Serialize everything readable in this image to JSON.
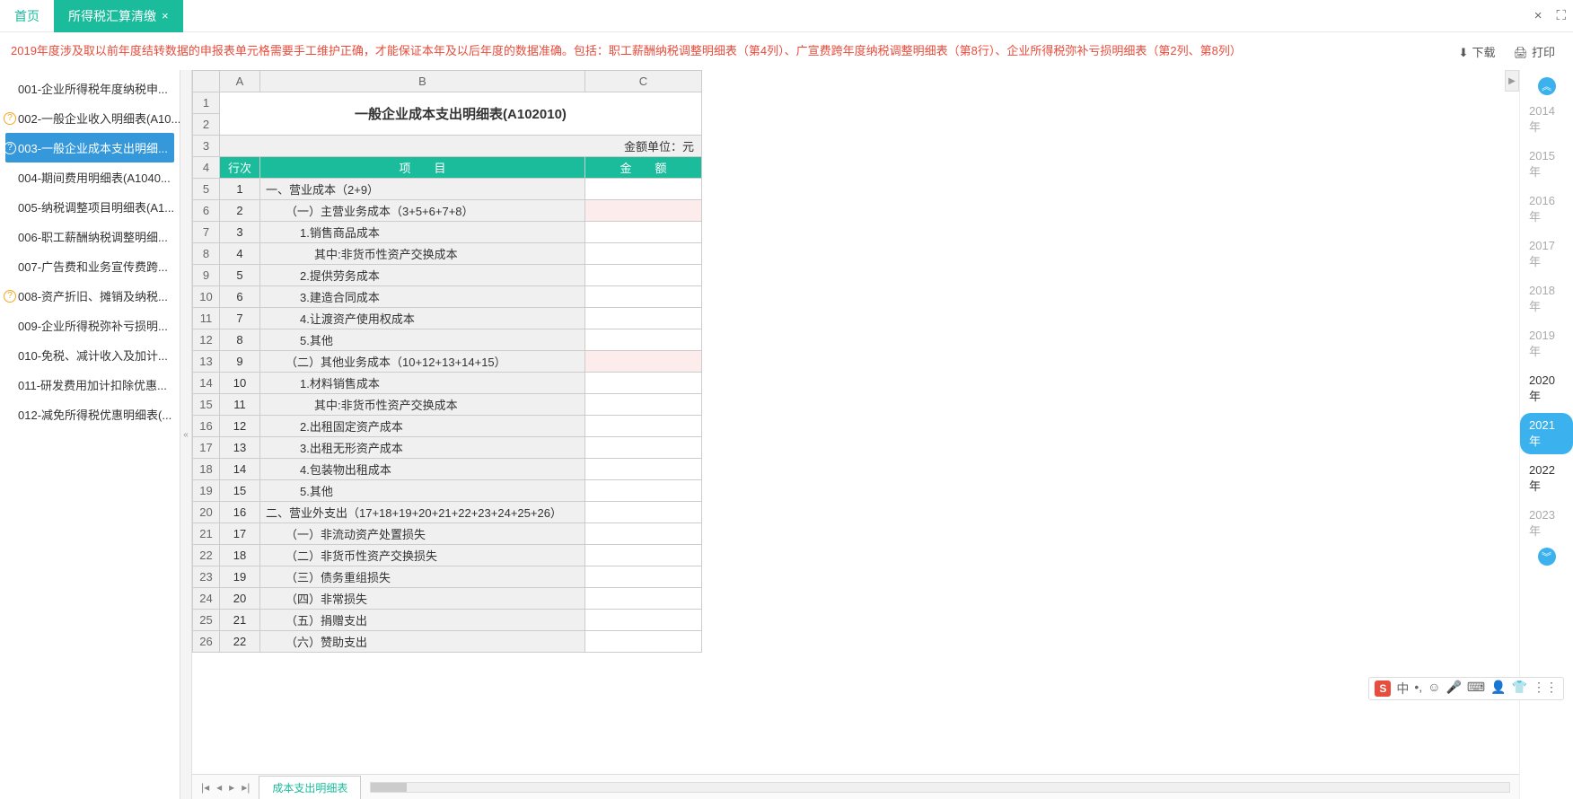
{
  "tabs": {
    "home": "首页",
    "active": "所得税汇算清缴",
    "close_glyph": "×",
    "fullscreen_glyph": "⛶"
  },
  "warning": "2019年度涉及取以前年度结转数据的申报表单元格需要手工维护正确，才能保证本年及以后年度的数据准确。包括：职工薪酬纳税调整明细表（第4列）、广宣费跨年度纳税调整明细表（第8行）、企业所得税弥补亏损明细表（第2列、第8列）",
  "actions": {
    "download": "下载",
    "download_icon": "⬇",
    "print": "打印",
    "print_icon": "🖨"
  },
  "sidebar": {
    "items": [
      {
        "label": "001-企业所得税年度纳税申...",
        "q": false
      },
      {
        "label": "002-一般企业收入明细表(A10...",
        "q": true
      },
      {
        "label": "003-一般企业成本支出明细...",
        "q": true,
        "active": true
      },
      {
        "label": "004-期间费用明细表(A1040...",
        "q": false
      },
      {
        "label": "005-纳税调整项目明细表(A1...",
        "q": false
      },
      {
        "label": "006-职工薪酬纳税调整明细...",
        "q": false
      },
      {
        "label": "007-广告费和业务宣传费跨...",
        "q": false
      },
      {
        "label": "008-资产折旧、摊销及纳税...",
        "q": true
      },
      {
        "label": "009-企业所得税弥补亏损明...",
        "q": false
      },
      {
        "label": "010-免税、减计收入及加计...",
        "q": false
      },
      {
        "label": "011-研发费用加计扣除优惠...",
        "q": false
      },
      {
        "label": "012-减免所得税优惠明细表(...",
        "q": false
      }
    ]
  },
  "collapse_glyph": "«",
  "sheet": {
    "columns": [
      "A",
      "B",
      "C"
    ],
    "title": "一般企业成本支出明细表(A102010)",
    "unit": "金额单位：元",
    "headers": {
      "A": "行次",
      "B": "项　　目",
      "C": "金　　额"
    },
    "rows": [
      {
        "n": 4,
        "A": "1",
        "B": "一、营业成本（2+9）",
        "indent": 0,
        "pink": false
      },
      {
        "n": 5,
        "A": "2",
        "B": "（一）主营业务成本（3+5+6+7+8）",
        "indent": 1,
        "pink": true
      },
      {
        "n": 6,
        "A": "3",
        "B": "1.销售商品成本",
        "indent": 2,
        "pink": false
      },
      {
        "n": 7,
        "A": "4",
        "B": "其中:非货币性资产交换成本",
        "indent": 3,
        "pink": false
      },
      {
        "n": 8,
        "A": "5",
        "B": "2.提供劳务成本",
        "indent": 2,
        "pink": false
      },
      {
        "n": 9,
        "A": "6",
        "B": "3.建造合同成本",
        "indent": 2,
        "pink": false
      },
      {
        "n": 10,
        "A": "7",
        "B": "4.让渡资产使用权成本",
        "indent": 2,
        "pink": false
      },
      {
        "n": 11,
        "A": "8",
        "B": "5.其他",
        "indent": 2,
        "pink": false
      },
      {
        "n": 12,
        "A": "9",
        "B": "（二）其他业务成本（10+12+13+14+15）",
        "indent": 1,
        "pink": true
      },
      {
        "n": 13,
        "A": "10",
        "B": "1.材料销售成本",
        "indent": 2,
        "pink": false
      },
      {
        "n": 14,
        "A": "11",
        "B": "其中:非货币性资产交换成本",
        "indent": 3,
        "pink": false
      },
      {
        "n": 15,
        "A": "12",
        "B": "2.出租固定资产成本",
        "indent": 2,
        "pink": false
      },
      {
        "n": 16,
        "A": "13",
        "B": "3.出租无形资产成本",
        "indent": 2,
        "pink": false
      },
      {
        "n": 17,
        "A": "14",
        "B": "4.包装物出租成本",
        "indent": 2,
        "pink": false
      },
      {
        "n": 18,
        "A": "15",
        "B": "5.其他",
        "indent": 2,
        "pink": false
      },
      {
        "n": 19,
        "A": "16",
        "B": "二、营业外支出（17+18+19+20+21+22+23+24+25+26）",
        "indent": 0,
        "pink": false
      },
      {
        "n": 20,
        "A": "17",
        "B": "（一）非流动资产处置损失",
        "indent": 1,
        "pink": false
      },
      {
        "n": 21,
        "A": "18",
        "B": "（二）非货币性资产交换损失",
        "indent": 1,
        "pink": false
      },
      {
        "n": 22,
        "A": "19",
        "B": "（三）债务重组损失",
        "indent": 1,
        "pink": false
      },
      {
        "n": 23,
        "A": "20",
        "B": "（四）非常损失",
        "indent": 1,
        "pink": false
      },
      {
        "n": 24,
        "A": "21",
        "B": "（五）捐赠支出",
        "indent": 1,
        "pink": false
      },
      {
        "n": 25,
        "A": "22",
        "B": "（六）赞助支出",
        "indent": 1,
        "pink": false
      }
    ],
    "tab_name": "成本支出明细表"
  },
  "years": {
    "up_glyph": "︽",
    "down_glyph": "︾",
    "list": [
      {
        "y": "2014年",
        "avail": false
      },
      {
        "y": "2015年",
        "avail": false
      },
      {
        "y": "2016年",
        "avail": false
      },
      {
        "y": "2017年",
        "avail": false
      },
      {
        "y": "2018年",
        "avail": false
      },
      {
        "y": "2019年",
        "avail": false
      },
      {
        "y": "2020年",
        "avail": true
      },
      {
        "y": "2021年",
        "avail": true,
        "active": true
      },
      {
        "y": "2022年",
        "avail": true
      },
      {
        "y": "2023年",
        "avail": false
      }
    ]
  },
  "expand_glyph": "▶",
  "ime": {
    "logo": "S",
    "items": [
      "中",
      "•,",
      "☺",
      "🎤",
      "⌨",
      "👤",
      "👕",
      "⋮⋮"
    ]
  },
  "colors": {
    "teal": "#1abc9c",
    "blue": "#3498db",
    "lightblue": "#3bb2ee",
    "red": "#e74c3c",
    "pink": "#fcecec",
    "grid": "#cccccc",
    "headbg": "#f0f0f0"
  }
}
